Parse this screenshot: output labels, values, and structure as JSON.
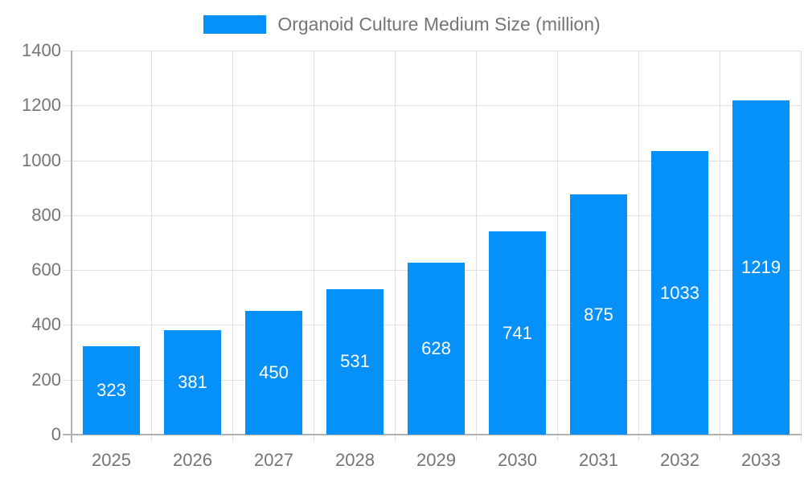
{
  "chart_data": {
    "type": "bar",
    "title": "Organoid Culture Medium Size (million)",
    "categories": [
      "2025",
      "2026",
      "2027",
      "2028",
      "2029",
      "2030",
      "2031",
      "2032",
      "2033"
    ],
    "values": [
      323,
      381,
      450,
      531,
      628,
      741,
      875,
      1033,
      1219
    ],
    "xlabel": "",
    "ylabel": "",
    "ylim": [
      0,
      1400
    ],
    "yticks": [
      0,
      200,
      400,
      600,
      800,
      1000,
      1200,
      1400
    ],
    "grid": true,
    "legend_position": "top-center",
    "bar_labels_inside": true,
    "colors": {
      "bar": "#0591f9",
      "bar_label": "#ffffff",
      "axis_text": "#757575",
      "legend_text": "#757575",
      "grid_line": "#e0e0e0",
      "axis_line": "#b1b1b1",
      "background": "#ffffff"
    }
  }
}
